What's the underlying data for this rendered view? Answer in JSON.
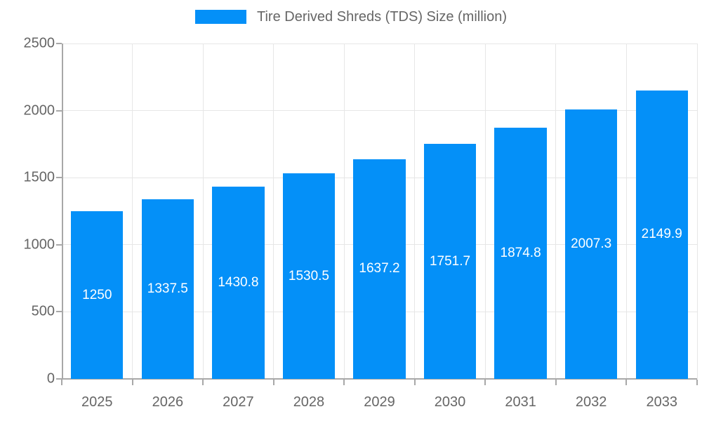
{
  "chart_data": {
    "type": "bar",
    "title": "Tire Derived Shreds (TDS) Size (million)",
    "categories": [
      "2025",
      "2026",
      "2027",
      "2028",
      "2029",
      "2030",
      "2031",
      "2032",
      "2033"
    ],
    "values": [
      1250,
      1337.5,
      1430.8,
      1530.5,
      1637.2,
      1751.7,
      1874.8,
      2007.3,
      2149.9
    ],
    "bar_labels": [
      "1250",
      "1337.5",
      "1430.8",
      "1530.5",
      "1637.2",
      "1751.7",
      "1874.8",
      "2007.3",
      "2149.9"
    ],
    "xlabel": "",
    "ylabel": "",
    "ylim": [
      0,
      2500
    ],
    "yticks": [
      0,
      500,
      1000,
      1500,
      2000,
      2500
    ],
    "ytick_labels": [
      "0",
      "500",
      "1000",
      "1500",
      "2000",
      "2500"
    ],
    "grid": true,
    "legend_position": "top-center",
    "colors": {
      "bar": "#0490f8",
      "bar_label_text": "#ffffff",
      "grid": "#e6e6e6",
      "axis": "#a8a8a8",
      "tick_text": "#666666",
      "legend_text": "#666666"
    }
  }
}
